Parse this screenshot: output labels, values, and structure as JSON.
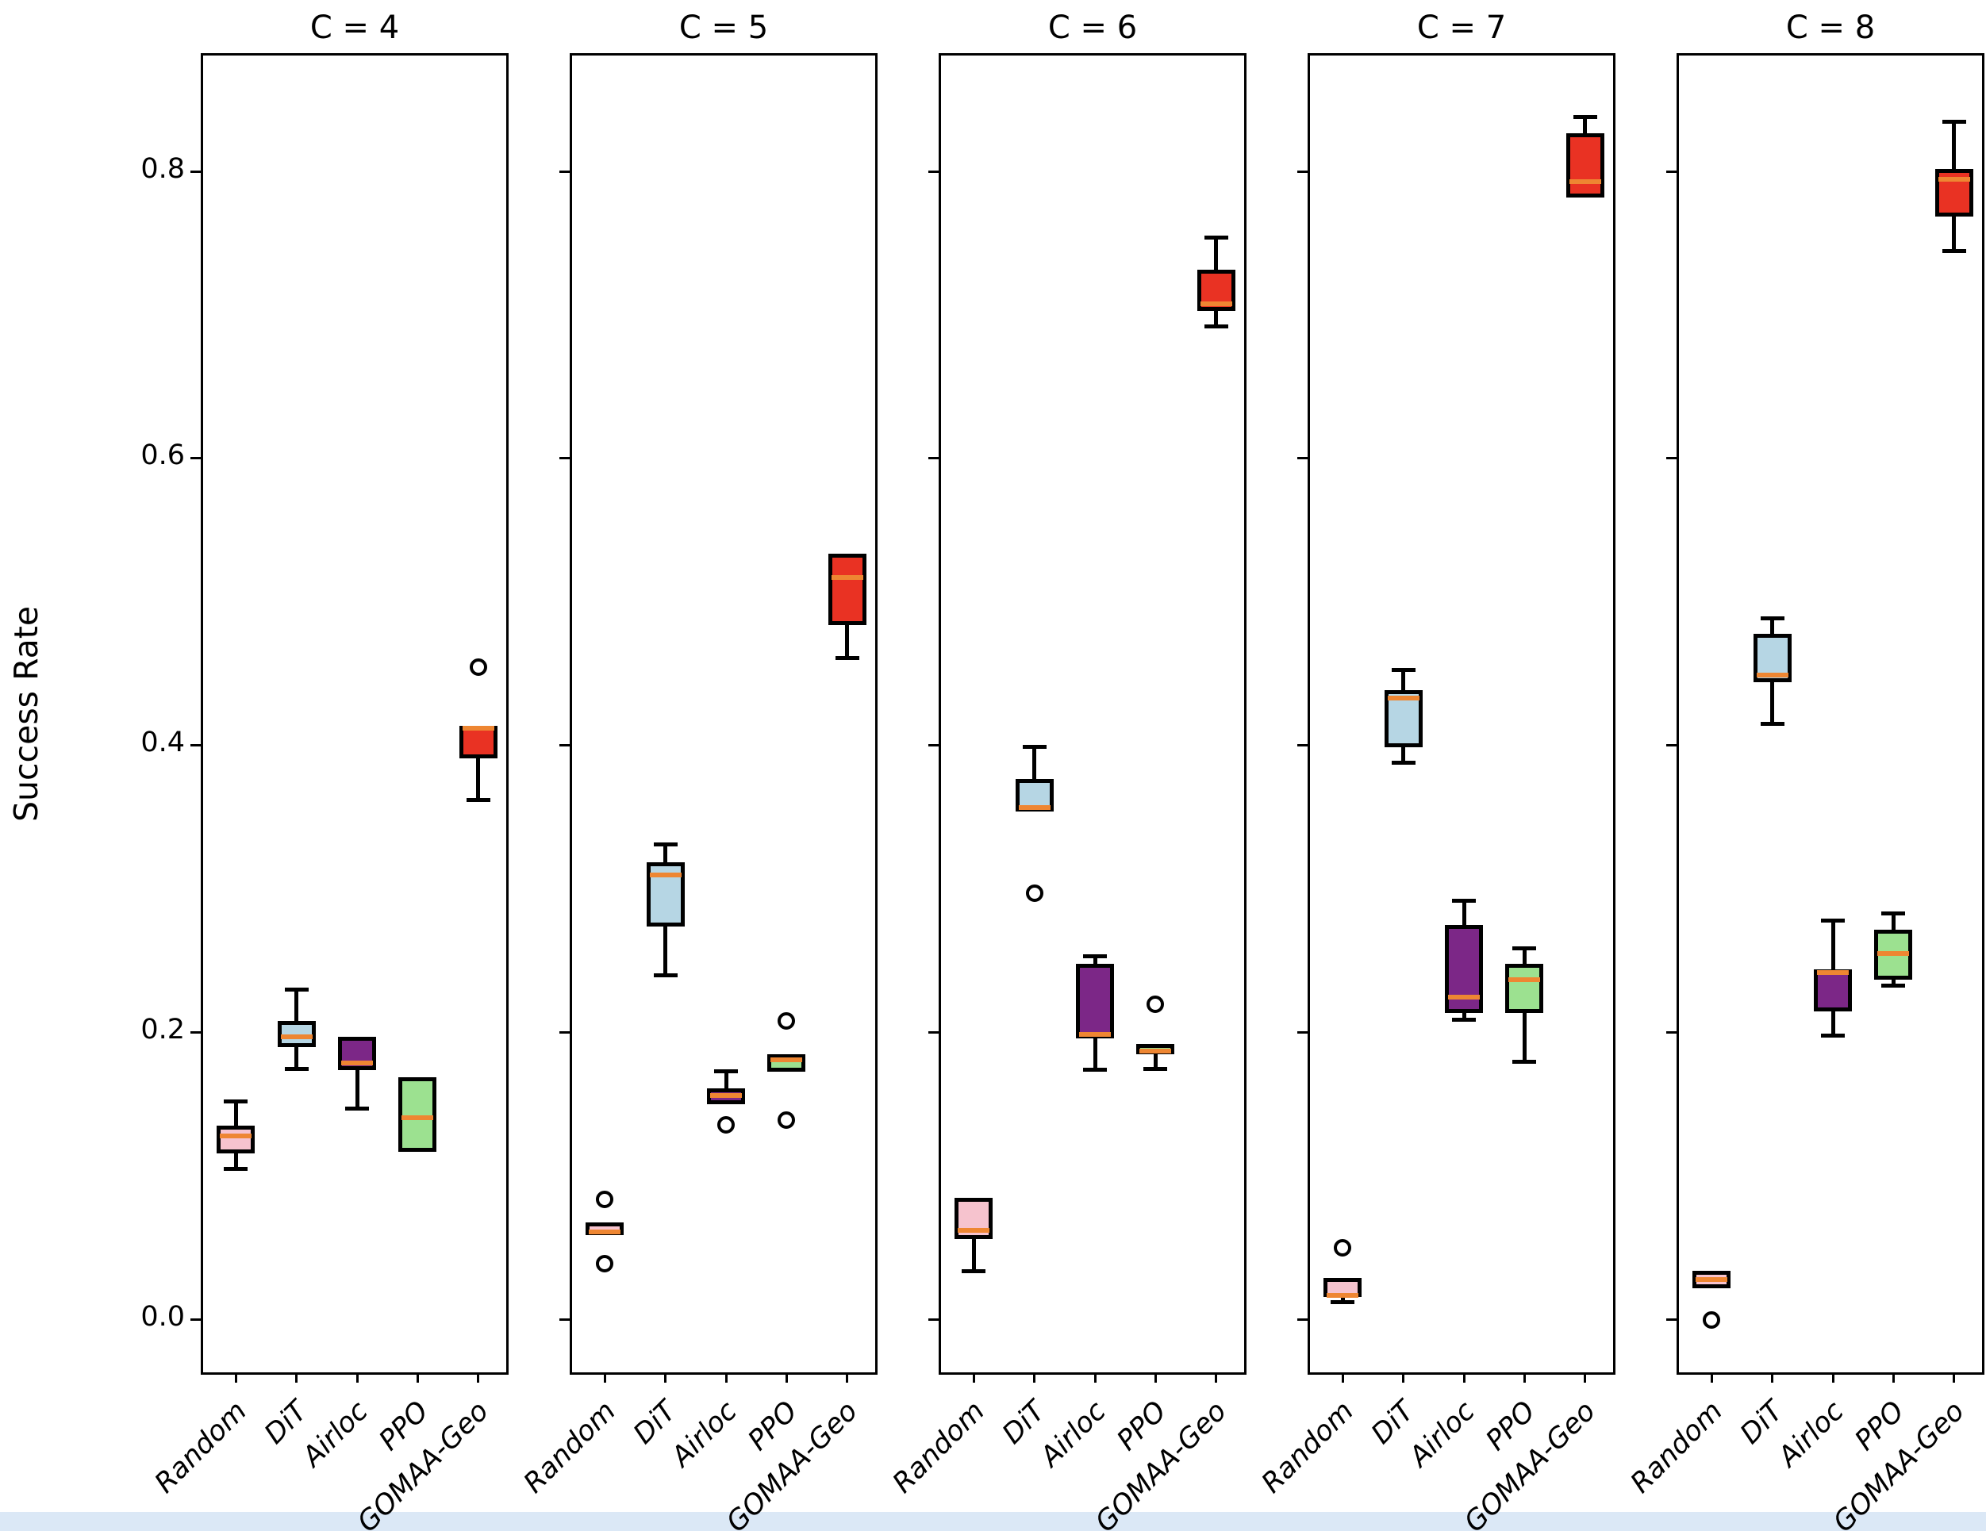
{
  "figure": {
    "ylabel": "Success Rate",
    "background_color": "#ffffff",
    "bottom_strip_color": "#dbe8f6"
  },
  "chart_data": {
    "type": "boxplot",
    "layout": "1x5-subplot-grid",
    "ylabel": "Success Rate",
    "categories": [
      "Random",
      "DiT",
      "Airloc",
      "PPO",
      "GOMAA-Geo"
    ],
    "category_colors": {
      "Random": "#f6c3ce",
      "DiT": "#b6d6e4",
      "Airloc": "#7c2787",
      "PPO": "#9ce190",
      "GOMAA-Geo": "#e93223"
    },
    "median_color": "#ee8632",
    "box_edge_color": "#000000",
    "yticks": [
      0.0,
      0.2,
      0.4,
      0.6,
      0.8
    ],
    "ytick_labels": [
      "0.0",
      "0.2",
      "0.4",
      "0.6",
      "0.8"
    ],
    "ylim": [
      -0.04,
      0.881
    ],
    "grid": false,
    "legend": "none",
    "subplots": [
      {
        "title": "C = 4",
        "boxes": [
          {
            "label": "Random",
            "whislo": 0.105,
            "q1": 0.116,
            "med": 0.128,
            "q3": 0.135,
            "whishi": 0.152,
            "fliers": []
          },
          {
            "label": "DiT",
            "whislo": 0.175,
            "q1": 0.19,
            "med": 0.197,
            "q3": 0.208,
            "whishi": 0.23,
            "fliers": []
          },
          {
            "label": "Airloc",
            "whislo": 0.147,
            "q1": 0.174,
            "med": 0.179,
            "q3": 0.197,
            "whishi": 0.197,
            "fliers": []
          },
          {
            "label": "PPO",
            "whislo": 0.117,
            "q1": 0.117,
            "med": 0.141,
            "q3": 0.169,
            "whishi": 0.169,
            "fliers": []
          },
          {
            "label": "GOMAA-Geo",
            "whislo": 0.362,
            "q1": 0.391,
            "med": 0.412,
            "q3": 0.414,
            "whishi": 0.414,
            "fliers": [
              0.455
            ]
          }
        ]
      },
      {
        "title": "C = 5",
        "boxes": [
          {
            "label": "Random",
            "whislo": 0.058,
            "q1": 0.059,
            "med": 0.061,
            "q3": 0.068,
            "whishi": 0.069,
            "fliers": [
              0.084,
              0.039
            ]
          },
          {
            "label": "DiT",
            "whislo": 0.24,
            "q1": 0.274,
            "med": 0.31,
            "q3": 0.319,
            "whishi": 0.331,
            "fliers": []
          },
          {
            "label": "Airloc",
            "whislo": 0.15,
            "q1": 0.15,
            "med": 0.156,
            "q3": 0.161,
            "whishi": 0.173,
            "fliers": [
              0.136
            ]
          },
          {
            "label": "PPO",
            "whislo": 0.173,
            "q1": 0.173,
            "med": 0.181,
            "q3": 0.185,
            "whishi": 0.185,
            "fliers": [
              0.208,
              0.139
            ]
          },
          {
            "label": "GOMAA-Geo",
            "whislo": 0.461,
            "q1": 0.484,
            "med": 0.517,
            "q3": 0.534,
            "whishi": 0.534,
            "fliers": []
          }
        ]
      },
      {
        "title": "C = 6",
        "boxes": [
          {
            "label": "Random",
            "whislo": 0.034,
            "q1": 0.056,
            "med": 0.062,
            "q3": 0.085,
            "whishi": 0.085,
            "fliers": []
          },
          {
            "label": "DiT",
            "whislo": 0.354,
            "q1": 0.354,
            "med": 0.357,
            "q3": 0.377,
            "whishi": 0.399,
            "fliers": [
              0.297
            ]
          },
          {
            "label": "Airloc",
            "whislo": 0.174,
            "q1": 0.196,
            "med": 0.199,
            "q3": 0.248,
            "whishi": 0.253,
            "fliers": []
          },
          {
            "label": "PPO",
            "whislo": 0.175,
            "q1": 0.185,
            "med": 0.187,
            "q3": 0.192,
            "whishi": 0.192,
            "fliers": [
              0.22
            ]
          },
          {
            "label": "GOMAA-Geo",
            "whislo": 0.692,
            "q1": 0.703,
            "med": 0.708,
            "q3": 0.732,
            "whishi": 0.754,
            "fliers": []
          }
        ]
      },
      {
        "title": "C = 7",
        "boxes": [
          {
            "label": "Random",
            "whislo": 0.012,
            "q1": 0.016,
            "med": 0.017,
            "q3": 0.029,
            "whishi": 0.029,
            "fliers": [
              0.05
            ]
          },
          {
            "label": "DiT",
            "whislo": 0.388,
            "q1": 0.399,
            "med": 0.433,
            "q3": 0.439,
            "whishi": 0.453,
            "fliers": []
          },
          {
            "label": "Airloc",
            "whislo": 0.209,
            "q1": 0.214,
            "med": 0.225,
            "q3": 0.275,
            "whishi": 0.292,
            "fliers": []
          },
          {
            "label": "PPO",
            "whislo": 0.18,
            "q1": 0.214,
            "med": 0.237,
            "q3": 0.248,
            "whishi": 0.259,
            "fliers": []
          },
          {
            "label": "GOMAA-Geo",
            "whislo": 0.782,
            "q1": 0.782,
            "med": 0.793,
            "q3": 0.827,
            "whishi": 0.838,
            "fliers": []
          }
        ]
      },
      {
        "title": "C = 8",
        "boxes": [
          {
            "label": "Random",
            "whislo": 0.022,
            "q1": 0.022,
            "med": 0.028,
            "q3": 0.034,
            "whishi": 0.034,
            "fliers": [
              0.0
            ]
          },
          {
            "label": "DiT",
            "whislo": 0.415,
            "q1": 0.444,
            "med": 0.449,
            "q3": 0.478,
            "whishi": 0.489,
            "fliers": []
          },
          {
            "label": "Airloc",
            "whislo": 0.198,
            "q1": 0.215,
            "med": 0.242,
            "q3": 0.244,
            "whishi": 0.278,
            "fliers": []
          },
          {
            "label": "PPO",
            "whislo": 0.233,
            "q1": 0.237,
            "med": 0.255,
            "q3": 0.272,
            "whishi": 0.283,
            "fliers": []
          },
          {
            "label": "GOMAA-Geo",
            "whislo": 0.745,
            "q1": 0.769,
            "med": 0.795,
            "q3": 0.802,
            "whishi": 0.835,
            "fliers": []
          }
        ]
      }
    ]
  }
}
